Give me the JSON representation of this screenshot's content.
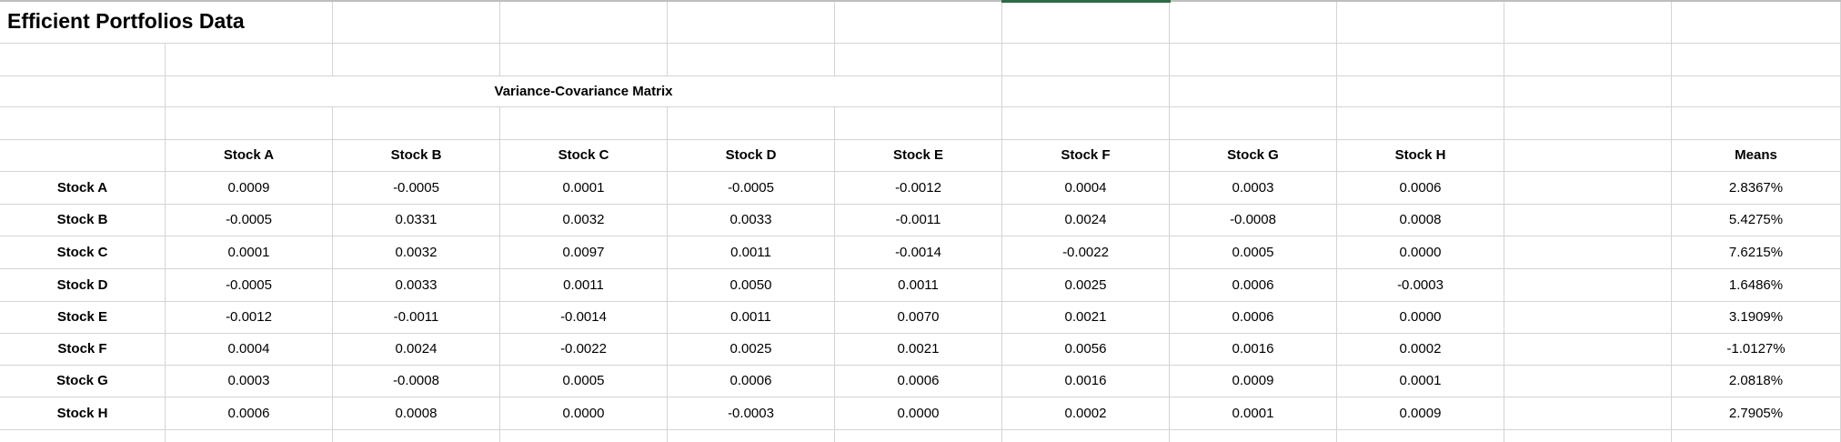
{
  "sheet": {
    "title": "Efficient Portfolios Data",
    "matrix_title": "Variance-Covariance Matrix",
    "means_header": "Means",
    "column_headers": [
      "Stock A",
      "Stock B",
      "Stock C",
      "Stock D",
      "Stock E",
      "Stock F",
      "Stock G",
      "Stock H"
    ],
    "rows": [
      {
        "label": "Stock A",
        "values": [
          "0.0009",
          "-0.0005",
          "0.0001",
          "-0.0005",
          "-0.0012",
          "0.0004",
          "0.0003",
          "0.0006"
        ],
        "mean": "2.8367%"
      },
      {
        "label": "Stock B",
        "values": [
          "-0.0005",
          "0.0331",
          "0.0032",
          "0.0033",
          "-0.0011",
          "0.0024",
          "-0.0008",
          "0.0008"
        ],
        "mean": "5.4275%"
      },
      {
        "label": "Stock C",
        "values": [
          "0.0001",
          "0.0032",
          "0.0097",
          "0.0011",
          "-0.0014",
          "-0.0022",
          "0.0005",
          "0.0000"
        ],
        "mean": "7.6215%"
      },
      {
        "label": "Stock D",
        "values": [
          "-0.0005",
          "0.0033",
          "0.0011",
          "0.0050",
          "0.0011",
          "0.0025",
          "0.0006",
          "-0.0003"
        ],
        "mean": "1.6486%"
      },
      {
        "label": "Stock E",
        "values": [
          "-0.0012",
          "-0.0011",
          "-0.0014",
          "0.0011",
          "0.0070",
          "0.0021",
          "0.0006",
          "0.0000"
        ],
        "mean": "3.1909%"
      },
      {
        "label": "Stock F",
        "values": [
          "0.0004",
          "0.0024",
          "-0.0022",
          "0.0025",
          "0.0021",
          "0.0056",
          "0.0016",
          "0.0002"
        ],
        "mean": "-1.0127%"
      },
      {
        "label": "Stock G",
        "values": [
          "0.0003",
          "-0.0008",
          "0.0005",
          "0.0006",
          "0.0006",
          "0.0016",
          "0.0009",
          "0.0001"
        ],
        "mean": "2.0818%"
      },
      {
        "label": "Stock H",
        "values": [
          "0.0006",
          "0.0008",
          "0.0000",
          "-0.0003",
          "0.0000",
          "0.0002",
          "0.0001",
          "0.0009"
        ],
        "mean": "2.7905%"
      }
    ],
    "colors": {
      "selection_green": "#2e6b44",
      "gridline": "#d4d4d4",
      "top_edge": "#bdbdbd"
    }
  }
}
